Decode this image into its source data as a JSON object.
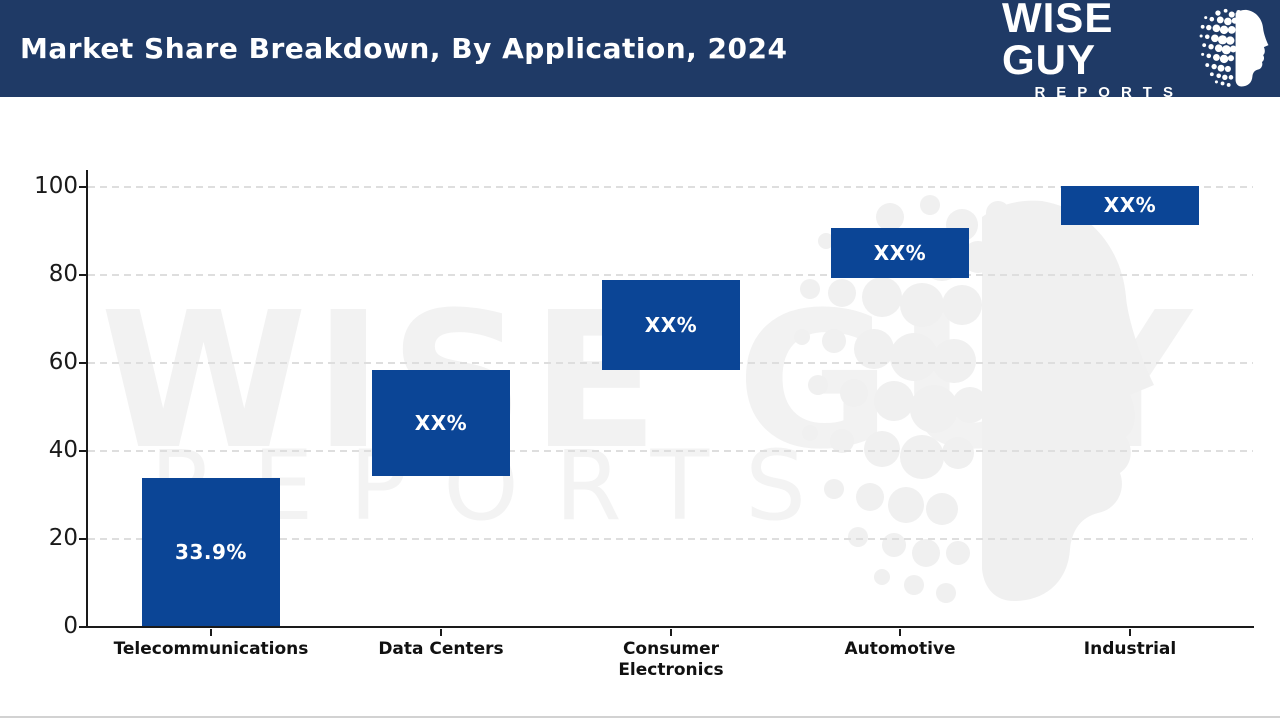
{
  "header": {
    "title": "Market Share Breakdown, By Application, 2024",
    "logo": {
      "line1": "WISE GUY",
      "line2": "REPORTS"
    }
  },
  "watermark": {
    "line1": "WISE GUY",
    "line2": "REPORTS"
  },
  "colors": {
    "header_bg": "#1F3A66",
    "bar": "#0B4596",
    "grid": "#DEDEDE",
    "axis": "#1A1A1A",
    "watermark": "#F2F2F2"
  },
  "chart_data": {
    "type": "bar",
    "subtype": "waterfall",
    "title": "Market Share Breakdown, By Application, 2024",
    "categories": [
      "Telecommunications",
      "Data Centers",
      "Consumer Electronics",
      "Automotive",
      "Industrial"
    ],
    "x_labels": [
      "Telecommunications",
      "Data Centers",
      "Consumer\nElectronics",
      "Automotive",
      "Industrial"
    ],
    "segments": [
      {
        "category": "Telecommunications",
        "start": 0.0,
        "end": 33.9,
        "label": "33.9%"
      },
      {
        "category": "Data Centers",
        "start": 34.3,
        "end": 58.4,
        "label": "XX%"
      },
      {
        "category": "Consumer Electronics",
        "start": 58.4,
        "end": 78.9,
        "label": "XX%"
      },
      {
        "category": "Automotive",
        "start": 79.3,
        "end": 90.7,
        "label": "XX%"
      },
      {
        "category": "Industrial",
        "start": 91.4,
        "end": 100.2,
        "label": "XX%"
      }
    ],
    "y_ticks": [
      0,
      20,
      40,
      60,
      80,
      100
    ],
    "ylim": [
      0,
      104
    ],
    "grid": "horizontal-dashed",
    "legend": "none",
    "bar_color": "#0B4596"
  }
}
